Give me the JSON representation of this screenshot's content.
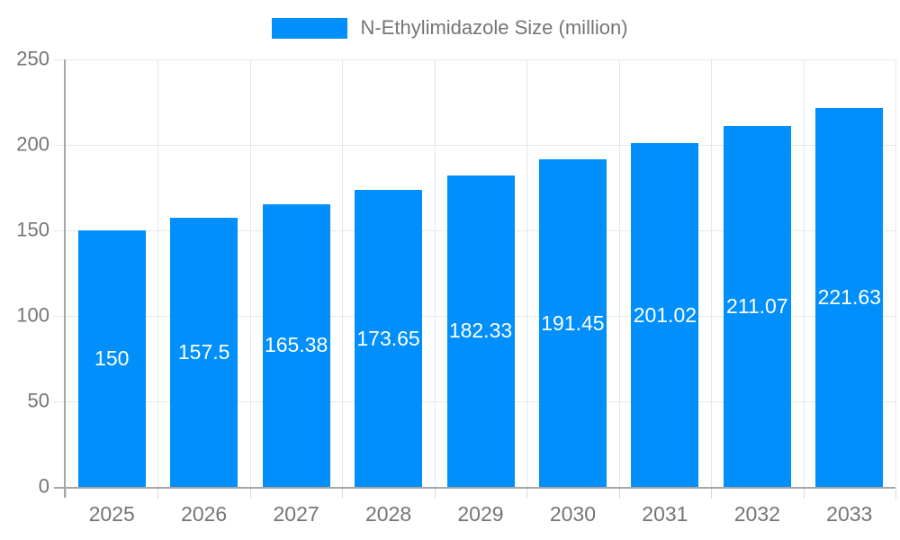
{
  "chart_data": {
    "type": "bar",
    "title": "N-Ethylimidazole Size (million)",
    "legend": {
      "label": "N-Ethylimidazole Size (million)",
      "position": "top"
    },
    "categories": [
      "2025",
      "2026",
      "2027",
      "2028",
      "2029",
      "2030",
      "2031",
      "2032",
      "2033"
    ],
    "values": [
      150,
      157.5,
      165.38,
      173.65,
      182.33,
      191.45,
      201.02,
      211.07,
      221.63
    ],
    "value_labels": [
      "150",
      "157.5",
      "165.38",
      "173.65",
      "182.33",
      "191.45",
      "201.02",
      "211.07",
      "221.63"
    ],
    "xlabel": "",
    "ylabel": "",
    "ylim": [
      0,
      250
    ],
    "yticks": [
      0,
      50,
      100,
      150,
      200,
      250
    ],
    "grid": true,
    "colors": {
      "bar": "#008FFB",
      "grid": "#e6e6e6",
      "axis": "#a6a6a6",
      "tick_label": "#757575",
      "data_label": "#ffffff",
      "background": "#ffffff"
    }
  }
}
